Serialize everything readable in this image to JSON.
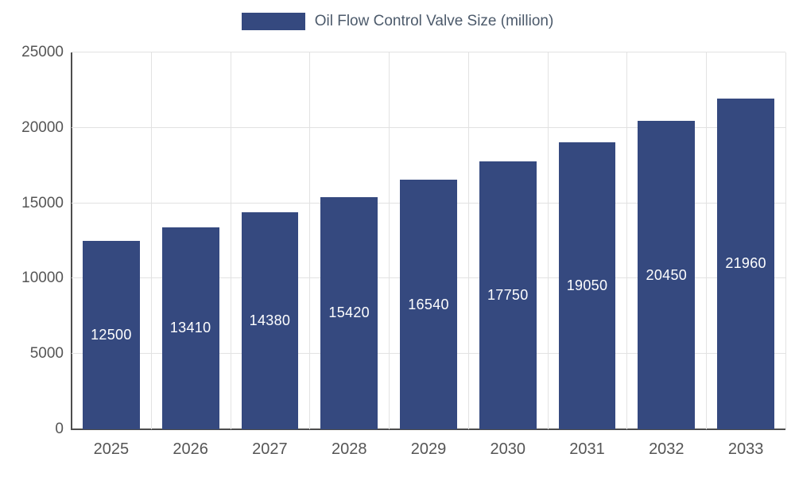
{
  "chart_data": {
    "type": "bar",
    "title": "Oil Flow Control Valve Size (million)",
    "categories": [
      "2025",
      "2026",
      "2027",
      "2028",
      "2029",
      "2030",
      "2031",
      "2032",
      "2033"
    ],
    "values": [
      12500,
      13410,
      14380,
      15420,
      16540,
      17750,
      19050,
      20450,
      21960
    ],
    "xlabel": "",
    "ylabel": "",
    "ylim": [
      0,
      25000
    ],
    "yticks": [
      0,
      5000,
      10000,
      15000,
      20000,
      25000
    ],
    "grid": true,
    "legend_position": "top-center",
    "bar_color": "#35497F",
    "value_label_color": "#ffffff",
    "axis_text_color": "#555555",
    "grid_color": "#e2e2e2"
  }
}
